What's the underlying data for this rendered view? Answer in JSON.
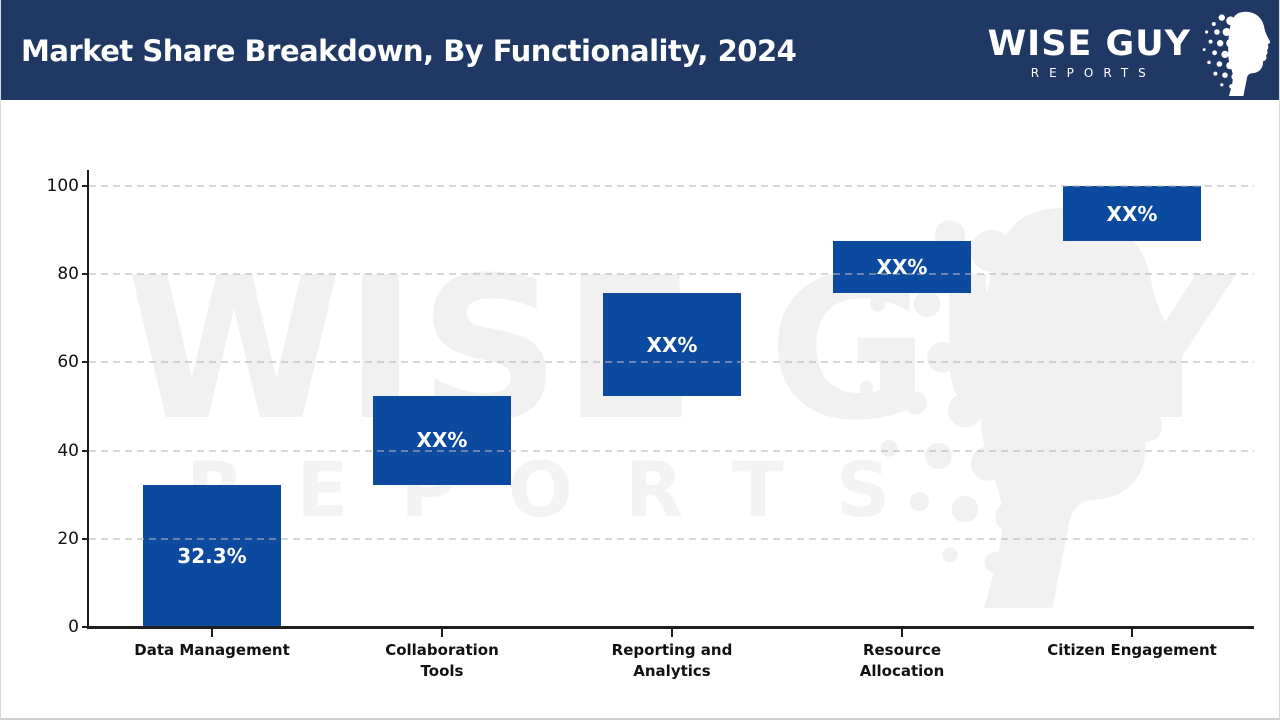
{
  "header": {
    "title": "Market Share Breakdown, By Functionality, 2024",
    "logo": {
      "line1": "WISE GUY",
      "line2": "REPORTS"
    }
  },
  "watermark": {
    "line1": "WISE GUY",
    "line2": "REPORTS"
  },
  "chart_data": {
    "type": "bar",
    "subtype": "waterfall",
    "title": "Market Share Breakdown, By Functionality, 2024",
    "xlabel": "",
    "ylabel": "",
    "ylim": [
      0,
      100
    ],
    "yticks": [
      0,
      20,
      40,
      60,
      80,
      100
    ],
    "grid": "horizontal-dashed",
    "legend": "none",
    "bar_color": "#0b4a9e",
    "label_color": "#ffffff",
    "categories": [
      "Data Management",
      "Collaboration Tools",
      "Reporting and Analytics",
      "Resource Allocation",
      "Citizen Engagement"
    ],
    "category_lines": [
      [
        "Data Management"
      ],
      [
        "Collaboration",
        "Tools"
      ],
      [
        "Reporting and",
        "Analytics"
      ],
      [
        "Resource",
        "Allocation"
      ],
      [
        "Citizen Engagement"
      ]
    ],
    "segments": [
      {
        "category": "Data Management",
        "start": 0,
        "end": 32.3,
        "value": 32.3,
        "label": "32.3%"
      },
      {
        "category": "Collaboration Tools",
        "start": 32.3,
        "end": 52.3,
        "value": 20.0,
        "label": "XX%"
      },
      {
        "category": "Reporting and Analytics",
        "start": 52.3,
        "end": 75.7,
        "value": 23.4,
        "label": "XX%"
      },
      {
        "category": "Resource Allocation",
        "start": 75.7,
        "end": 87.5,
        "value": 11.8,
        "label": "XX%"
      },
      {
        "category": "Citizen Engagement",
        "start": 87.5,
        "end": 100,
        "value": 12.5,
        "label": "XX%"
      }
    ]
  },
  "colors": {
    "header_bg": "#1f3864",
    "bar": "#0b4a9e",
    "axis": "#1f1f1f",
    "grid": "#b6b6b6",
    "watermark": "#f1f1f1",
    "page_border": "#d9d9d9"
  }
}
